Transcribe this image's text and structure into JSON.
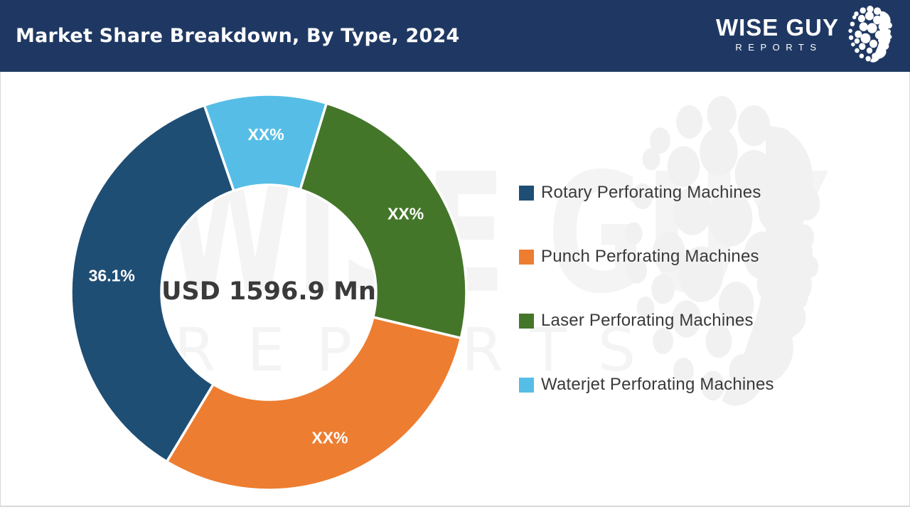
{
  "header": {
    "title": "Market Share Breakdown, By Type, 2024",
    "bg_color": "#1F3863",
    "logo": {
      "line1": "WISE GUY",
      "line2": "REPORTS"
    }
  },
  "watermark": {
    "line1": "WISE GUY",
    "line2": "REPORTS"
  },
  "chart_data": {
    "type": "pie",
    "donut": true,
    "title": "Market Share Breakdown, By Type, 2024",
    "center_label": "USD 1596.9 Mn",
    "start_angle_deg": 109,
    "direction": "counterclockwise",
    "legend_position": "right",
    "series": [
      {
        "label": "Rotary Perforating Machines",
        "value": 36.1,
        "display": "36.1%",
        "color": "#1F4E74"
      },
      {
        "label": "Punch Perforating Machines",
        "value": 29.9,
        "display": "XX%",
        "color": "#ED7D31"
      },
      {
        "label": "Laser Perforating Machines",
        "value": 24.0,
        "display": "XX%",
        "color": "#44762A"
      },
      {
        "label": "Waterjet Perforating Machines",
        "value": 10.0,
        "display": "XX%",
        "color": "#56BEE6"
      }
    ],
    "colors": {
      "label_text": "#FFFFFF",
      "center_text": "#3A3A3A",
      "legend_text": "#3A3A3A",
      "separator": "#FFFFFF"
    }
  }
}
